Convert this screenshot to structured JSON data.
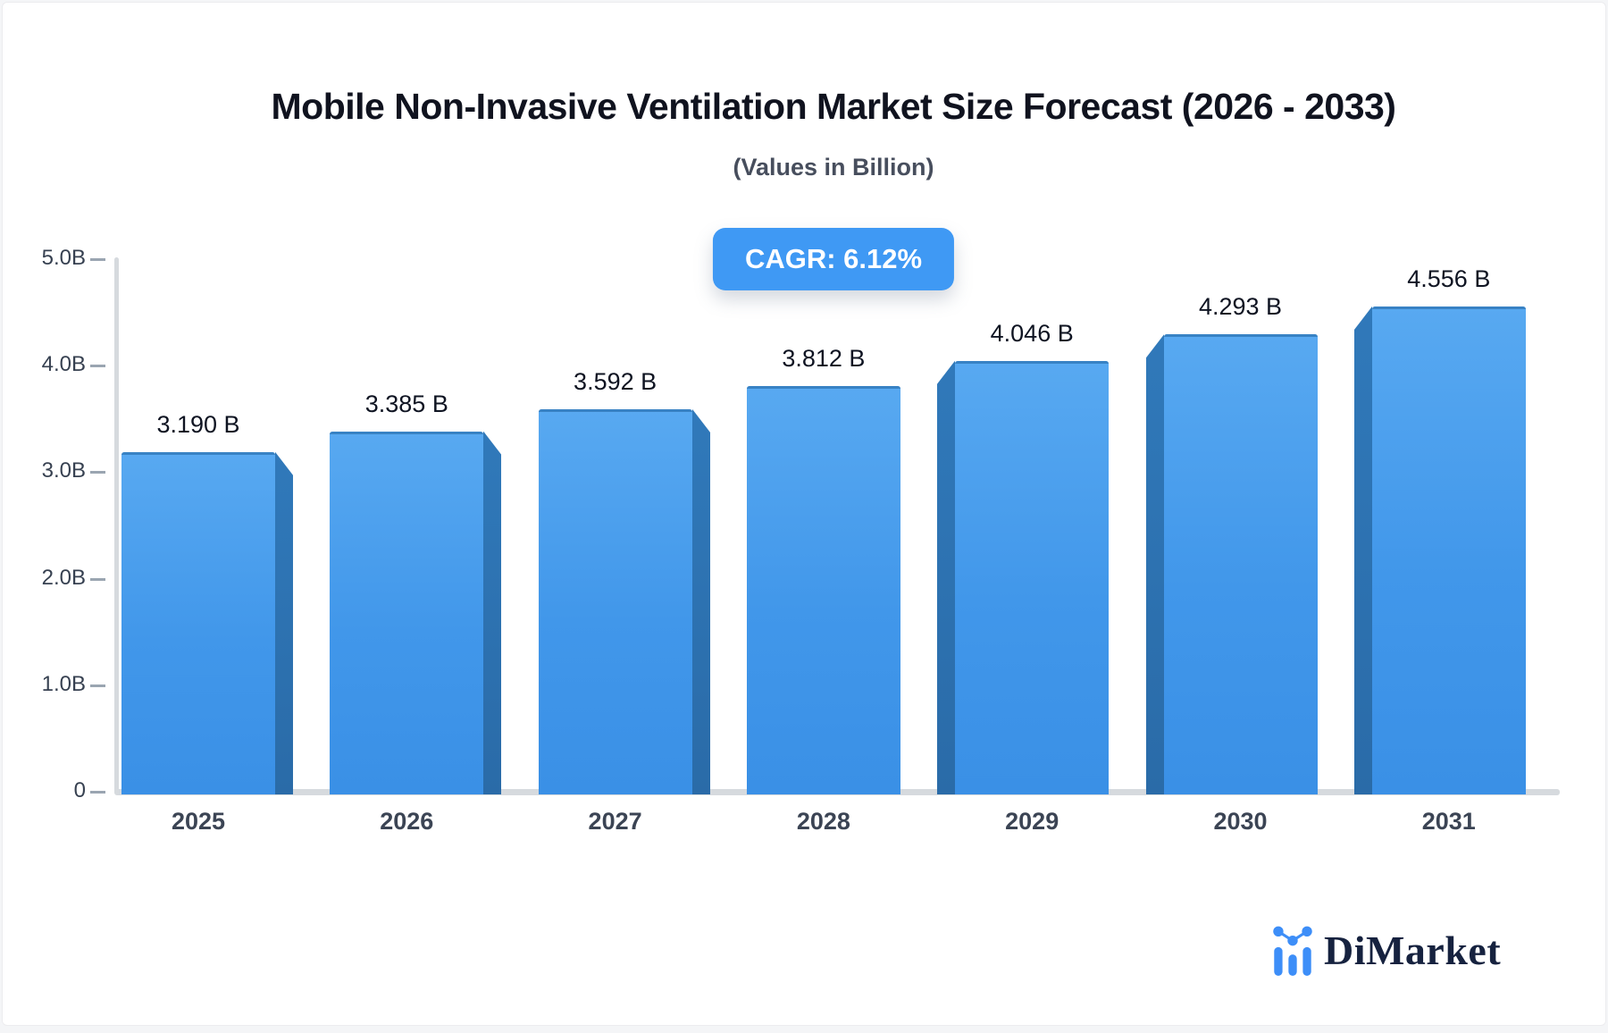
{
  "title": "Mobile Non-Invasive Ventilation Market Size Forecast (2026 - 2033)",
  "subtitle": "(Values in Billion)",
  "badge": {
    "label": "CAGR: 6.12%"
  },
  "chart_data": {
    "type": "bar",
    "title": "Mobile Non-Invasive Ventilation Market Size Forecast (2026 - 2033)",
    "subtitle": "(Values in Billion)",
    "categories": [
      "2025",
      "2026",
      "2027",
      "2028",
      "2029",
      "2030",
      "2031"
    ],
    "values": [
      3.19,
      3.385,
      3.592,
      3.812,
      4.046,
      4.293,
      4.556
    ],
    "value_labels": [
      "3.190 B",
      "3.385 B",
      "3.592 B",
      "3.812 B",
      "4.046 B",
      "4.293 B",
      "4.556 B"
    ],
    "cagr": "6.12%",
    "xlabel": "",
    "ylabel": "",
    "ylim": [
      0,
      5
    ],
    "grid": false,
    "legend": "none",
    "y_ticks": [
      {
        "value": 5.0,
        "label": "5.0B"
      },
      {
        "value": 4.0,
        "label": "4.0B"
      },
      {
        "value": 3.0,
        "label": "3.0B"
      },
      {
        "value": 2.0,
        "label": "2.0B"
      },
      {
        "value": 1.0,
        "label": "1.0B"
      },
      {
        "value": 0.0,
        "label": "0"
      }
    ]
  },
  "colors": {
    "bar_face_top": "#58a9f1",
    "bar_face_bottom": "#3a90e6",
    "bar_side": "#2e74b2",
    "badge_background": "#3f99f4",
    "badge_text": "#ffffff",
    "axis_line": "#d6dade",
    "tick_dash": "#9aa5b1",
    "title_text": "#10131f",
    "logo_navy": "#16223f",
    "logo_blue": "#3d8ef8"
  },
  "logo": {
    "text": "DiMarket",
    "icon": "bar-line-chart-icon"
  }
}
